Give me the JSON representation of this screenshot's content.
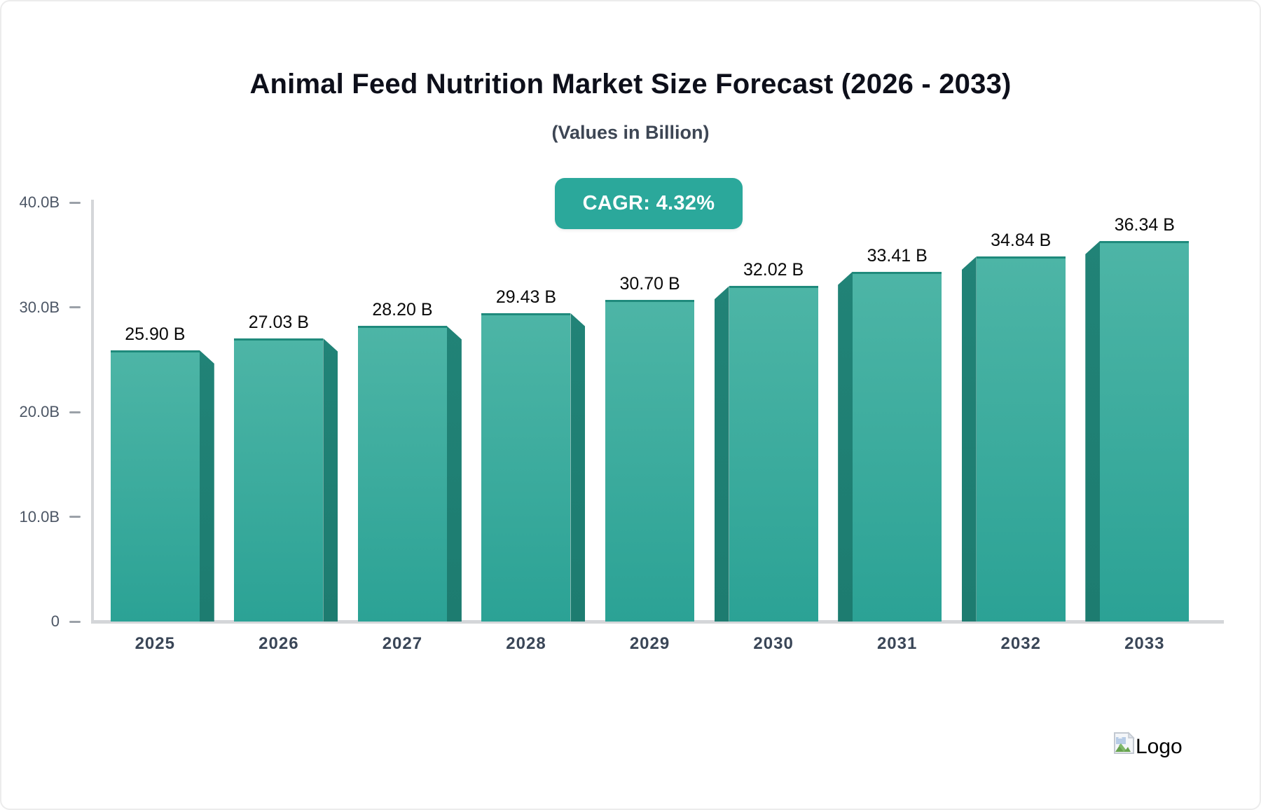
{
  "title": "Animal Feed Nutrition Market Size Forecast (2026 - 2033)",
  "subtitle": "(Values in Billion)",
  "badge": {
    "label": "CAGR: 4.32%",
    "bg_color": "#2ba89b",
    "text_color": "#ffffff"
  },
  "logo": {
    "alt_text": "Logo"
  },
  "colors": {
    "bar_gradient_top": "#4db5a6",
    "bar_gradient_bottom": "#2ba295",
    "bar_side": "#1d7c70",
    "bar_top_border": "#1f8a7c",
    "axis_line": "#d4d6d9",
    "tick_dash": "#9ba1a8",
    "y_label_text": "#4c5665",
    "x_label_text": "#3a4657",
    "value_label_text": "#0a0a0a",
    "title_text": "#0d0f1a",
    "subtitle_text": "#3d4654",
    "badge_bg": "#2ba89b"
  },
  "chart_data": {
    "type": "bar",
    "title": "Animal Feed Nutrition Market Size Forecast (2026 - 2033)",
    "subtitle": "(Values in Billion)",
    "annotation": "CAGR: 4.32%",
    "categories": [
      "2025",
      "2026",
      "2027",
      "2028",
      "2029",
      "2030",
      "2031",
      "2032",
      "2033"
    ],
    "values": [
      25.9,
      27.03,
      28.2,
      29.43,
      30.7,
      32.02,
      33.41,
      34.84,
      36.34
    ],
    "value_labels": [
      "25.90 B",
      "27.03 B",
      "28.20 B",
      "29.43 B",
      "30.70 B",
      "32.02 B",
      "33.41 B",
      "34.84 B",
      "36.34 B"
    ],
    "xlabel": "",
    "ylabel": "",
    "ylim": [
      0,
      40
    ],
    "yticks": [
      {
        "label": "40.0B",
        "value": 40
      },
      {
        "label": "30.0B",
        "value": 30
      },
      {
        "label": "20.0B",
        "value": 20
      },
      {
        "label": "10.0B",
        "value": 10
      },
      {
        "label": "0",
        "value": 0
      }
    ],
    "grid": false,
    "legend": false,
    "style": "3d-perspective-bars, sides face toward center bar"
  }
}
